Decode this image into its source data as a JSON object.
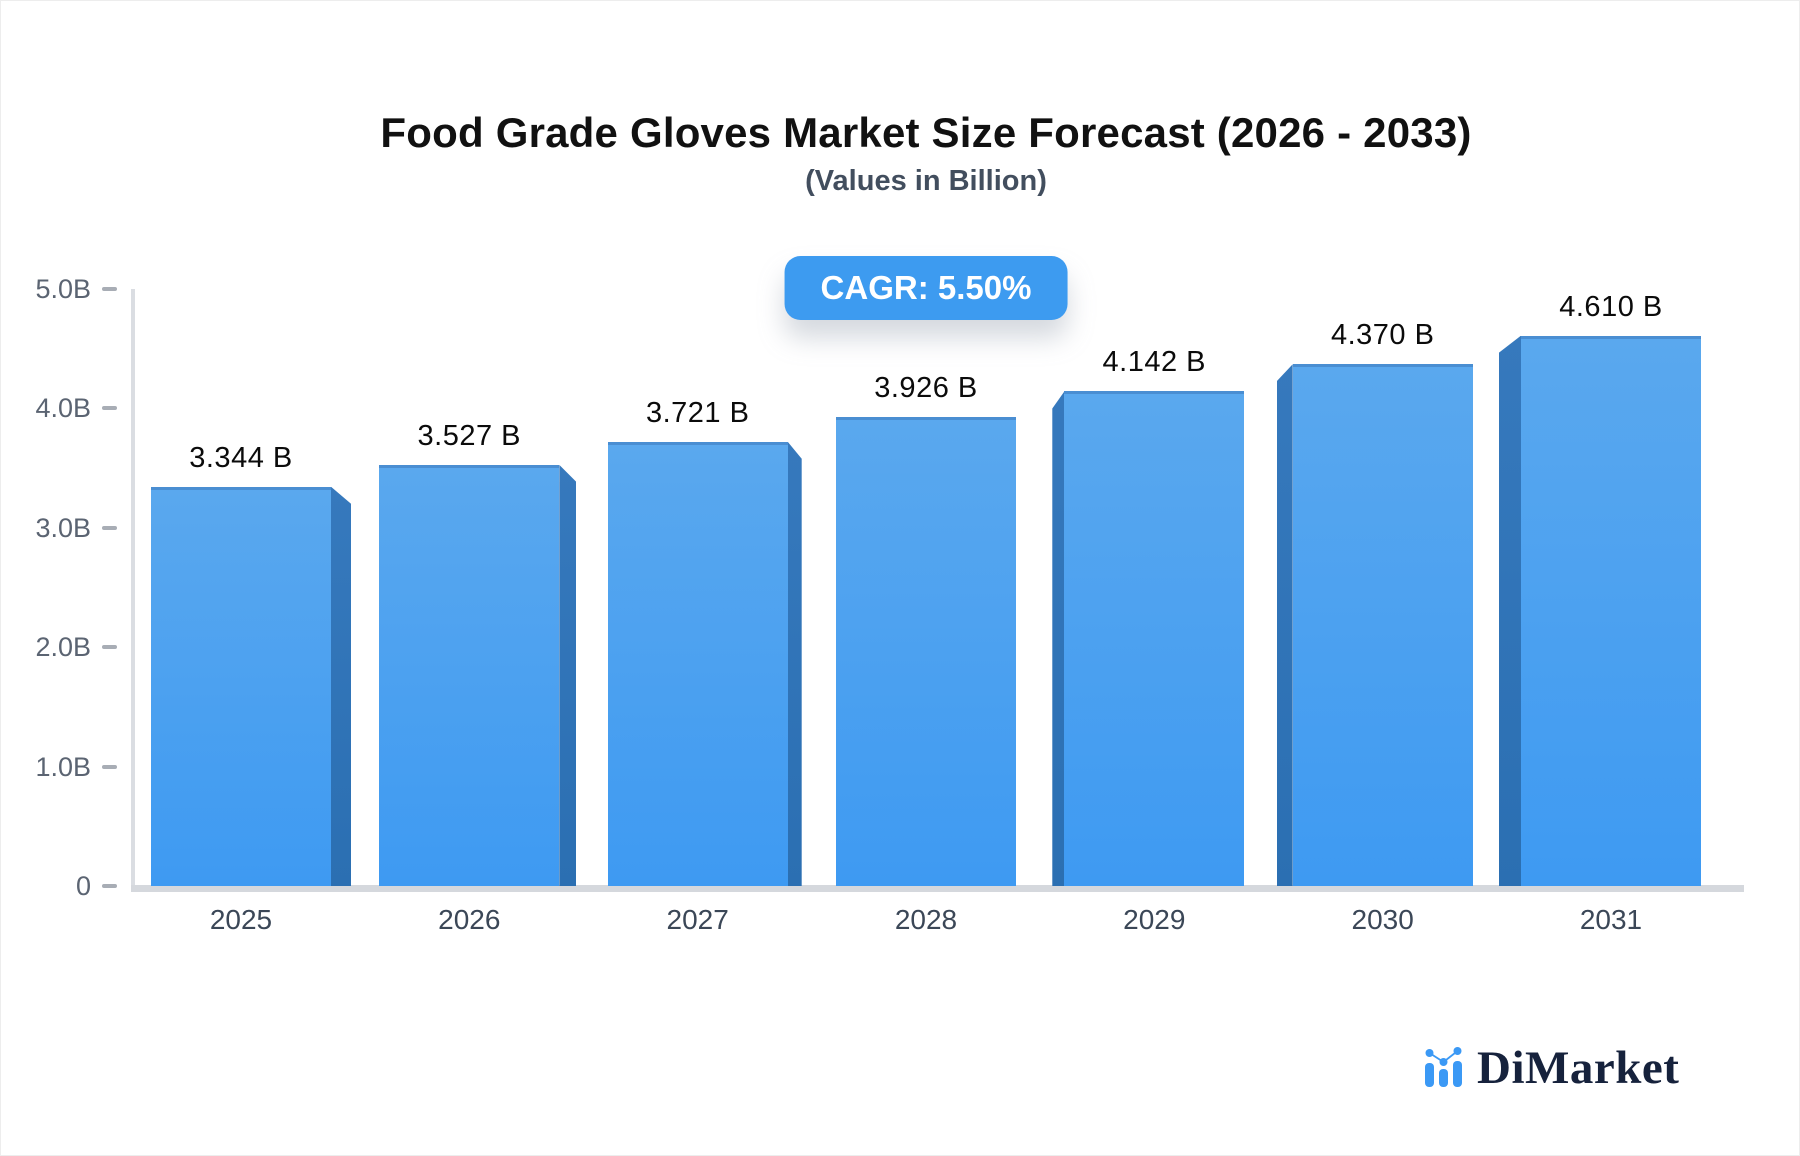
{
  "chart_data": {
    "type": "bar",
    "title": "Food Grade Gloves Market Size Forecast (2026 - 2033)",
    "subtitle": "(Values in Billion)",
    "badge_label": "CAGR: 5.50%",
    "categories": [
      "2025",
      "2026",
      "2027",
      "2028",
      "2029",
      "2030",
      "2031"
    ],
    "values": [
      3.344,
      3.527,
      3.721,
      3.926,
      4.142,
      4.37,
      4.61
    ],
    "value_labels": [
      "3.344 B",
      "3.527 B",
      "3.721 B",
      "3.926 B",
      "4.142 B",
      "4.370 B",
      "4.610 B"
    ],
    "xlabel": "",
    "ylabel": "",
    "ylim": [
      0,
      5
    ],
    "y_ticks": [
      {
        "label": "5.0B",
        "value": 5
      },
      {
        "label": "4.0B",
        "value": 4
      },
      {
        "label": "3.0B",
        "value": 3
      },
      {
        "label": "2.0B",
        "value": 2
      },
      {
        "label": "1.0B",
        "value": 1
      },
      {
        "label": "0",
        "value": 0
      }
    ],
    "grid": false,
    "legend": false,
    "bar_style": "3d-beveled",
    "colors": {
      "bar_front_top": "#5aa8ee",
      "bar_front_bottom": "#3e9af2",
      "bar_side_top": "#3679bd",
      "bar_side_bottom": "#2b6fb2",
      "bar_top_edge": "#4a8ed2",
      "badge_bg": "#3d9bf0",
      "badge_text": "#ffffff",
      "axis_line": "#dadde2",
      "tick_text": "#5b6472",
      "category_text": "#3b4757",
      "value_text": "#0b0b0b",
      "title_text": "#111111",
      "subtitle_text": "#424e5e"
    }
  },
  "logo": {
    "text": "DiMarket",
    "icon": "bar-chart-sparkline-icon",
    "icon_color": "#3b99f5",
    "text_color": "#16223c"
  }
}
